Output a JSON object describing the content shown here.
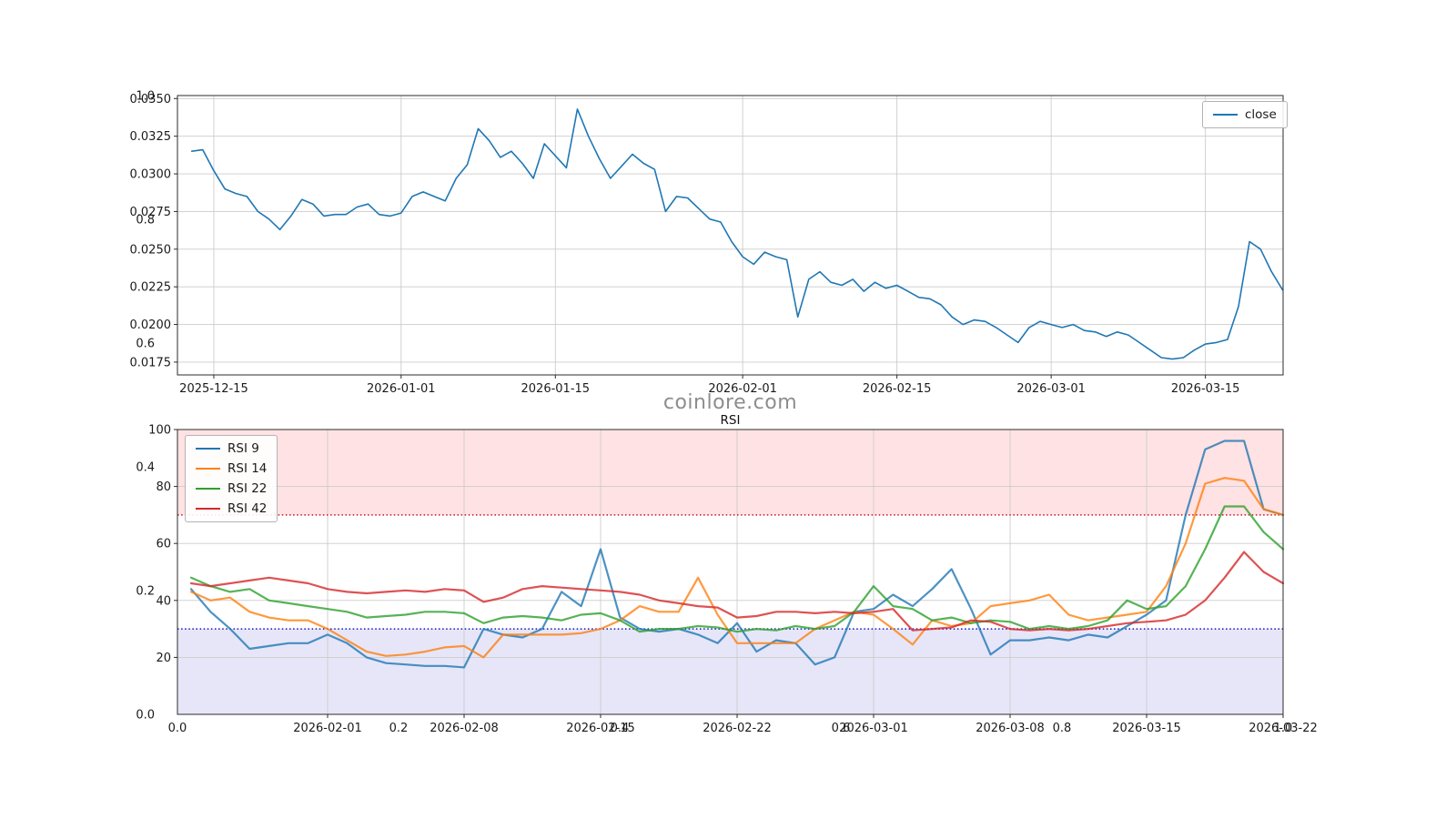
{
  "watermark": "coinlore.com",
  "phantom_axis": {
    "xticks": [
      "0.0",
      "0.2",
      "0.4",
      "0.6",
      "0.8",
      "1.0"
    ],
    "yticks": [
      "0.0",
      "0.2",
      "0.4",
      "0.6",
      "0.8",
      "1.0"
    ]
  },
  "chart_data": [
    {
      "type": "line",
      "name": "price-chart",
      "title": "",
      "legend_position": "upper right",
      "grid": true,
      "x_start": "2025-12-13",
      "x_unit": "day",
      "xlim_days": [
        -1.3,
        99.05
      ],
      "ylim": [
        0.01665,
        0.0352
      ],
      "xticks": [
        "2025-12-15",
        "2026-01-01",
        "2026-01-15",
        "2026-02-01",
        "2026-02-15",
        "2026-03-01",
        "2026-03-15"
      ],
      "yticks": [
        {
          "label": "0.0350",
          "value": 0.035
        },
        {
          "label": "0.0325",
          "value": 0.0325
        },
        {
          "label": "0.0300",
          "value": 0.03
        },
        {
          "label": "0.0275",
          "value": 0.0275
        },
        {
          "label": "0.0250",
          "value": 0.025
        },
        {
          "label": "0.0225",
          "value": 0.0225
        },
        {
          "label": "0.0200",
          "value": 0.02
        },
        {
          "label": "0.0175",
          "value": 0.0175
        }
      ],
      "series": [
        {
          "name": "close",
          "color": "#1f77b4",
          "values": [
            0.0315,
            0.0316,
            0.0302,
            0.029,
            0.0287,
            0.0285,
            0.0275,
            0.027,
            0.0263,
            0.0272,
            0.0283,
            0.028,
            0.0272,
            0.0273,
            0.0273,
            0.0278,
            0.028,
            0.0273,
            0.0272,
            0.0274,
            0.0285,
            0.0288,
            0.0285,
            0.0282,
            0.0297,
            0.0306,
            0.033,
            0.0322,
            0.0311,
            0.0315,
            0.0307,
            0.0297,
            0.032,
            0.0312,
            0.0304,
            0.0343,
            0.0325,
            0.031,
            0.0297,
            0.0305,
            0.0313,
            0.0307,
            0.0303,
            0.0275,
            0.0285,
            0.0284,
            0.0277,
            0.027,
            0.0268,
            0.0255,
            0.0245,
            0.024,
            0.0248,
            0.0245,
            0.0243,
            0.0205,
            0.023,
            0.0235,
            0.0228,
            0.0226,
            0.023,
            0.0222,
            0.0228,
            0.0224,
            0.0226,
            0.0222,
            0.0218,
            0.0217,
            0.0213,
            0.0205,
            0.02,
            0.0203,
            0.0202,
            0.0198,
            0.0193,
            0.0188,
            0.0198,
            0.0202,
            0.02,
            0.0198,
            0.02,
            0.0196,
            0.0195,
            0.0192,
            0.0195,
            0.0193,
            0.0188,
            0.0183,
            0.0178,
            0.0177,
            0.0178,
            0.0183,
            0.0187,
            0.0188,
            0.019,
            0.0212,
            0.0255,
            0.025,
            0.0235,
            0.0223
          ]
        }
      ]
    },
    {
      "type": "line",
      "name": "rsi-chart",
      "title": "RSI",
      "legend_position": "upper left",
      "grid": true,
      "x_start": "2026-01-25",
      "x_unit": "day",
      "xlim_days": [
        -0.7,
        56.0
      ],
      "ylim": [
        0,
        100
      ],
      "xticks": [
        "2026-02-01",
        "2026-02-08",
        "2026-02-15",
        "2026-02-22",
        "2026-03-01",
        "2026-03-08",
        "2026-03-15",
        "2026-03-22"
      ],
      "yticks": [
        {
          "label": "100",
          "value": 100
        },
        {
          "label": "80",
          "value": 80
        },
        {
          "label": "60",
          "value": 60
        },
        {
          "label": "40",
          "value": 40
        },
        {
          "label": "20",
          "value": 20
        }
      ],
      "bands": [
        {
          "name": "overbought-region",
          "lo": 70,
          "hi": 100,
          "fill": "rgba(255,30,40,0.13)"
        },
        {
          "name": "oversold-region",
          "lo": 0,
          "hi": 30,
          "fill": "rgba(90,90,205,0.15)"
        }
      ],
      "hlines": [
        {
          "name": "overbought-line",
          "value": 70,
          "color": "#cc1122"
        },
        {
          "name": "oversold-line",
          "value": 30,
          "color": "#1111bb"
        }
      ],
      "series": [
        {
          "name": "RSI 9",
          "color": "#1f77b4",
          "values": [
            44,
            36,
            30,
            23,
            24,
            25,
            25,
            28,
            25,
            20,
            18,
            17.5,
            17,
            17,
            16.5,
            30,
            28,
            27,
            30,
            43,
            38,
            58,
            34,
            30,
            29,
            30,
            28,
            25,
            32,
            22,
            26,
            25,
            17.5,
            20,
            36,
            37,
            42,
            38,
            44,
            51,
            37,
            21,
            26,
            26,
            27,
            26,
            28,
            27,
            31,
            35,
            40,
            70,
            93,
            96,
            96,
            72,
            70
          ]
        },
        {
          "name": "RSI 14",
          "color": "#ff7f0e",
          "values": [
            43,
            40,
            41,
            36,
            34,
            33,
            33,
            30,
            26,
            22,
            20.5,
            21,
            22,
            23.5,
            24,
            20,
            28,
            28,
            28,
            28,
            28.5,
            30,
            33,
            38,
            36,
            36,
            48,
            35,
            25,
            25,
            25,
            25,
            30,
            33,
            36,
            35,
            30,
            24.5,
            33,
            31,
            32,
            38,
            39,
            40,
            42,
            35,
            33,
            34,
            35,
            36,
            45,
            60,
            81,
            83,
            82,
            72,
            70
          ]
        },
        {
          "name": "RSI 22",
          "color": "#2ca02c",
          "values": [
            48,
            45,
            43,
            44,
            40,
            39,
            38,
            37,
            36,
            34,
            34.5,
            35,
            36,
            36,
            35.5,
            32,
            34,
            34.5,
            34,
            33,
            35,
            35.5,
            33,
            29,
            30,
            30,
            31,
            30.5,
            29,
            30,
            29.5,
            31,
            30,
            31,
            36,
            45,
            38,
            37,
            33,
            34,
            32,
            33,
            32.5,
            30,
            31,
            30,
            31,
            33,
            40,
            37,
            38,
            45,
            58,
            73,
            73,
            64,
            58
          ]
        },
        {
          "name": "RSI 42",
          "color": "#d62728",
          "values": [
            46,
            45,
            46,
            47,
            48,
            47,
            46,
            44,
            43,
            42.5,
            43,
            43.5,
            43,
            44,
            43.5,
            39.5,
            41,
            44,
            45,
            44.5,
            44,
            43.5,
            43,
            42,
            40,
            39,
            38,
            37.5,
            34,
            34.5,
            36,
            36,
            35.5,
            36,
            35.5,
            36,
            37,
            29.5,
            30,
            30.5,
            33,
            32.5,
            30,
            29.5,
            30,
            29.5,
            30,
            31,
            32,
            32.5,
            33,
            35,
            40,
            48,
            57,
            50,
            46
          ]
        }
      ]
    }
  ]
}
